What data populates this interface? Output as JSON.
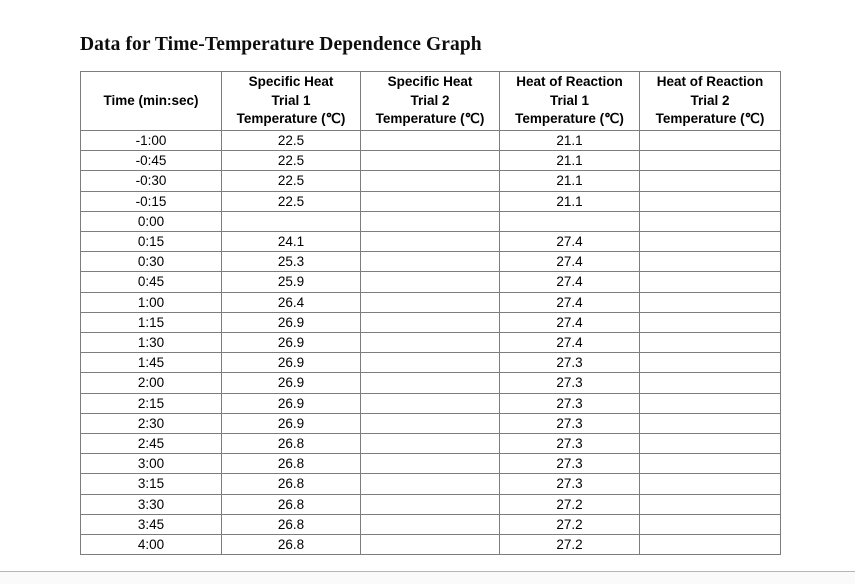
{
  "page": {
    "title": "Data for Time-Temperature Dependence Graph"
  },
  "table": {
    "columns": [
      {
        "lines": [
          "Time (min:sec)"
        ]
      },
      {
        "lines": [
          "Specific Heat",
          "Trial 1",
          "Temperature (℃)"
        ]
      },
      {
        "lines": [
          "Specific Heat",
          "Trial 2",
          "Temperature (℃)"
        ]
      },
      {
        "lines": [
          "Heat of Reaction",
          "Trial 1",
          "Temperature (℃)"
        ]
      },
      {
        "lines": [
          "Heat of Reaction",
          "Trial 2",
          "Temperature (℃)"
        ]
      }
    ],
    "rows": [
      [
        "-1:00",
        "22.5",
        "",
        "21.1",
        ""
      ],
      [
        "-0:45",
        "22.5",
        "",
        "21.1",
        ""
      ],
      [
        "-0:30",
        "22.5",
        "",
        "21.1",
        ""
      ],
      [
        "-0:15",
        "22.5",
        "",
        "21.1",
        ""
      ],
      [
        "0:00",
        "",
        "",
        "",
        ""
      ],
      [
        "0:15",
        "24.1",
        "",
        "27.4",
        ""
      ],
      [
        "0:30",
        "25.3",
        "",
        "27.4",
        ""
      ],
      [
        "0:45",
        "25.9",
        "",
        "27.4",
        ""
      ],
      [
        "1:00",
        "26.4",
        "",
        "27.4",
        ""
      ],
      [
        "1:15",
        "26.9",
        "",
        "27.4",
        ""
      ],
      [
        "1:30",
        "26.9",
        "",
        "27.4",
        ""
      ],
      [
        "1:45",
        "26.9",
        "",
        "27.3",
        ""
      ],
      [
        "2:00",
        "26.9",
        "",
        "27.3",
        ""
      ],
      [
        "2:15",
        "26.9",
        "",
        "27.3",
        ""
      ],
      [
        "2:30",
        "26.9",
        "",
        "27.3",
        ""
      ],
      [
        "2:45",
        "26.8",
        "",
        "27.3",
        ""
      ],
      [
        "3:00",
        "26.8",
        "",
        "27.3",
        ""
      ],
      [
        "3:15",
        "26.8",
        "",
        "27.3",
        ""
      ],
      [
        "3:30",
        "26.8",
        "",
        "27.2",
        ""
      ],
      [
        "3:45",
        "26.8",
        "",
        "27.2",
        ""
      ],
      [
        "4:00",
        "26.8",
        "",
        "27.2",
        ""
      ]
    ]
  },
  "colors": {
    "background": "#ffffff",
    "text": "#000000",
    "table_border": "#7d7d7d",
    "bottom_strip": "#fbfafa",
    "bottom_strip_line": "#b5b5b5"
  }
}
